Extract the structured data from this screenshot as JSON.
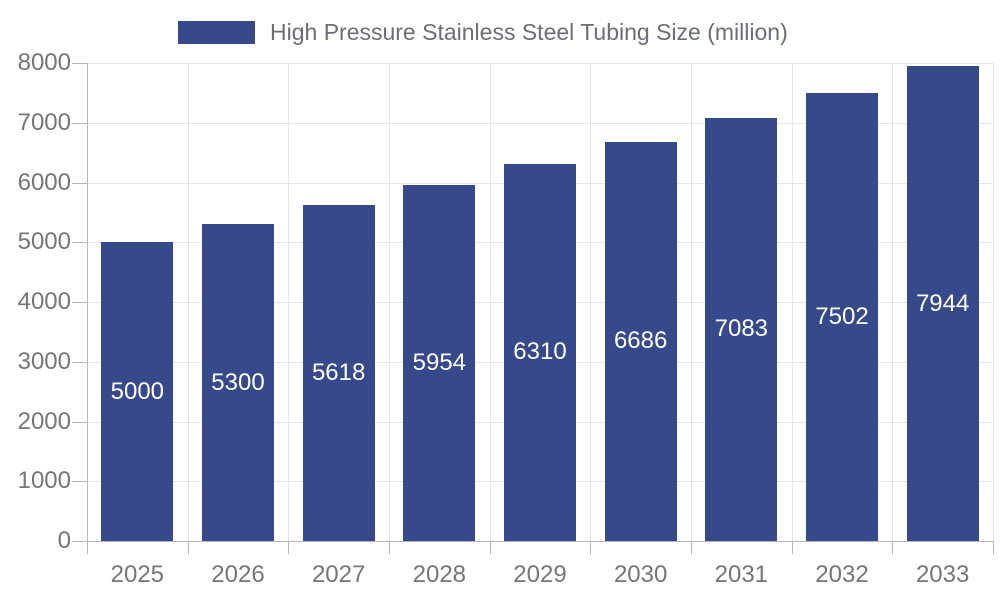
{
  "legend": {
    "label": "High Pressure Stainless Steel Tubing Size (million)"
  },
  "chart_data": {
    "type": "bar",
    "title": "",
    "categories": [
      "2025",
      "2026",
      "2027",
      "2028",
      "2029",
      "2030",
      "2031",
      "2032",
      "2033"
    ],
    "values": [
      5000,
      5300,
      5618,
      5954,
      6310,
      6686,
      7083,
      7502,
      7944
    ],
    "series": [
      {
        "name": "High Pressure Stainless Steel Tubing Size (million)",
        "values": [
          5000,
          5300,
          5618,
          5954,
          6310,
          6686,
          7083,
          7502,
          7944
        ]
      }
    ],
    "xlabel": "",
    "ylabel": "",
    "ylim": [
      0,
      8000
    ],
    "ytick_step": 1000,
    "ytick_labels": [
      "0",
      "1000",
      "2000",
      "3000",
      "4000",
      "5000",
      "6000",
      "7000",
      "8000"
    ],
    "grid": true,
    "legend_position": "top-center",
    "value_labels_shown": true,
    "value_label_position": "center-of-bar",
    "colors": {
      "bar": "#36498B",
      "value_label": "#FFFFFF",
      "axis_label": "#75757B",
      "legend_text": "#6B6E76",
      "gridline": "#E5E5EA",
      "axis_line": "#B5B5BE",
      "background": "#FFFFFF"
    }
  }
}
